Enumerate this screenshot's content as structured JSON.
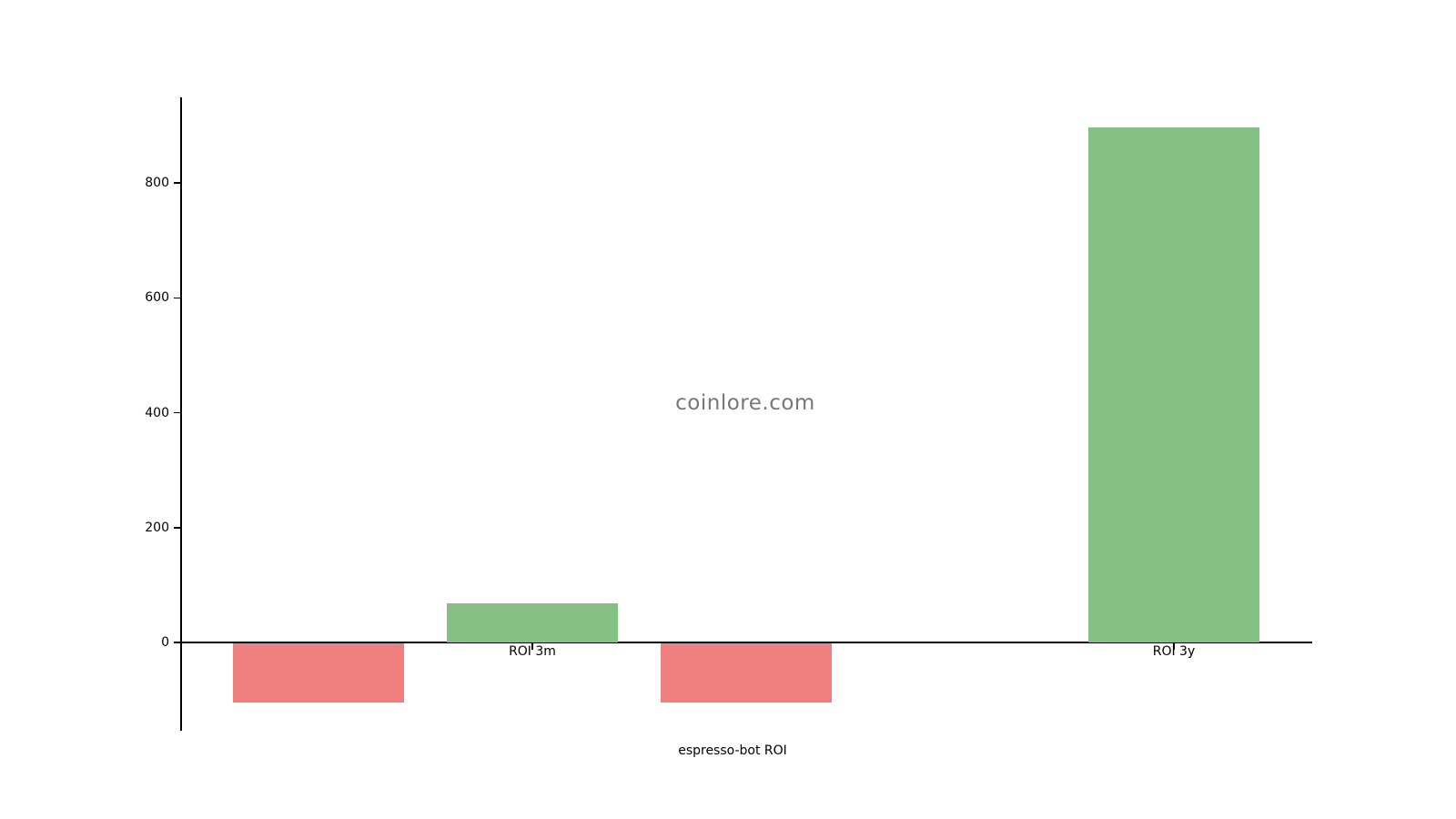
{
  "page": {
    "background": "#ffffff"
  },
  "watermark": {
    "text": "coinlore.com",
    "color": "#777777"
  },
  "chart_data": {
    "type": "bar",
    "title": "espresso-bot ROI",
    "xlabel": "espresso-bot ROI",
    "ylabel": "",
    "grid": false,
    "legend": null,
    "ylim": [
      -155,
      950
    ],
    "y_ticks": [
      0,
      200,
      400,
      600,
      800
    ],
    "categories": [
      "",
      "ROI 3m",
      "",
      "",
      "ROI 3y"
    ],
    "values": [
      -103,
      68,
      -103,
      0,
      897
    ],
    "colors": {
      "positive": "#85c085",
      "negative": "#f08080",
      "axis": "#000000",
      "tick_text": "#000000"
    }
  }
}
